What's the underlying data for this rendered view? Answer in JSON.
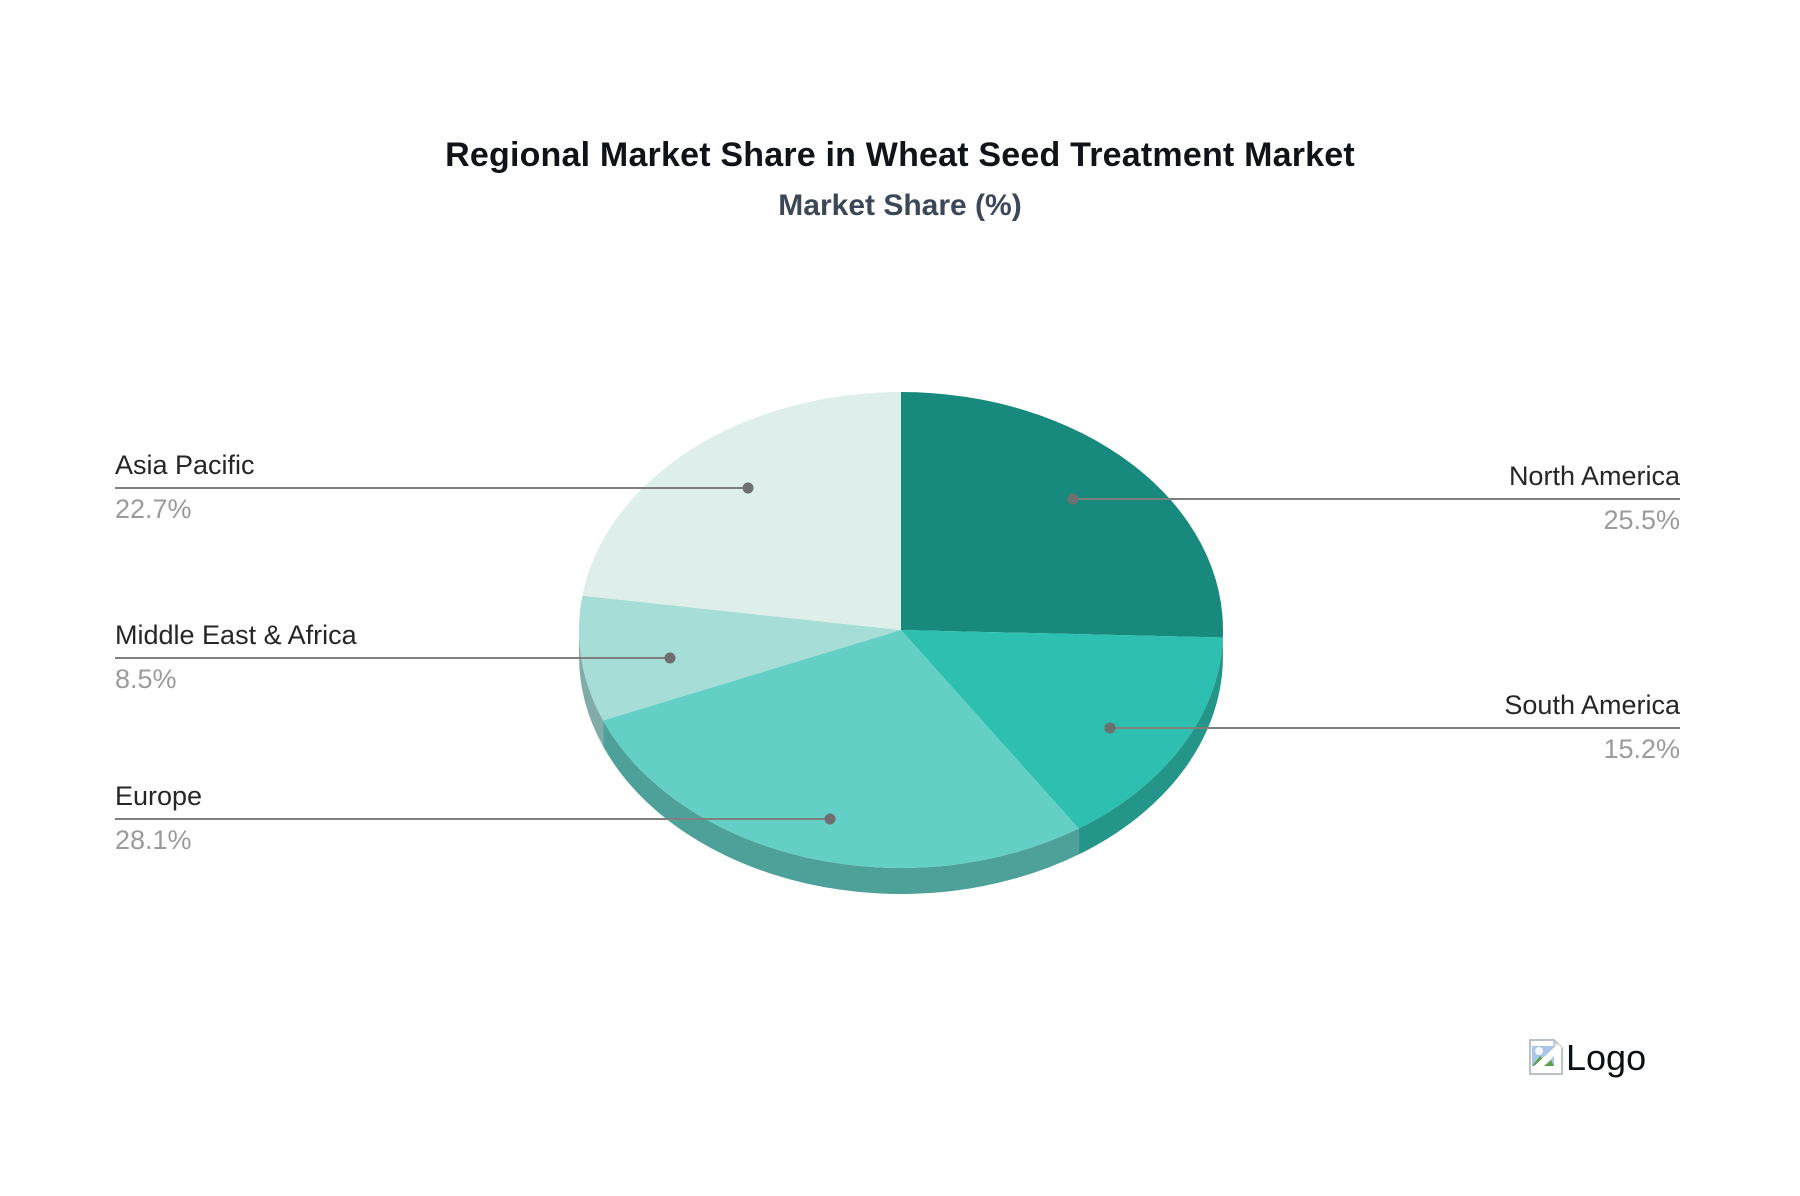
{
  "header": {
    "title": "Regional Market Share in Wheat Seed Treatment Market",
    "subtitle": "Market Share (%)"
  },
  "footer": {
    "logo_alt_text": "Logo"
  },
  "chart_data": {
    "type": "pie",
    "title": "Regional Market Share in Wheat Seed Treatment Market",
    "subtitle": "Market Share (%)",
    "unit": "%",
    "style": "3d",
    "start_angle_deg": 0,
    "direction": "clockwise",
    "legend_position": "callout-labels",
    "slices": [
      {
        "label": "North America",
        "value": 25.5,
        "display": "25.5%",
        "color": "#18897D"
      },
      {
        "label": "South America",
        "value": 15.2,
        "display": "15.2%",
        "color": "#2DBFAF"
      },
      {
        "label": "Europe",
        "value": 28.1,
        "display": "28.1%",
        "color": "#64CFC4"
      },
      {
        "label": "Middle East & Africa",
        "value": 8.5,
        "display": "8.5%",
        "color": "#A6DDD6"
      },
      {
        "label": "Asia Pacific",
        "value": 22.7,
        "display": "22.7%",
        "color": "#DEEEEB"
      }
    ],
    "leader_line_color": "#7F7F7F",
    "leader_dot_color": "#6F6F6F",
    "label_text_color": "#262626",
    "value_text_color": "#9B9B9B"
  }
}
